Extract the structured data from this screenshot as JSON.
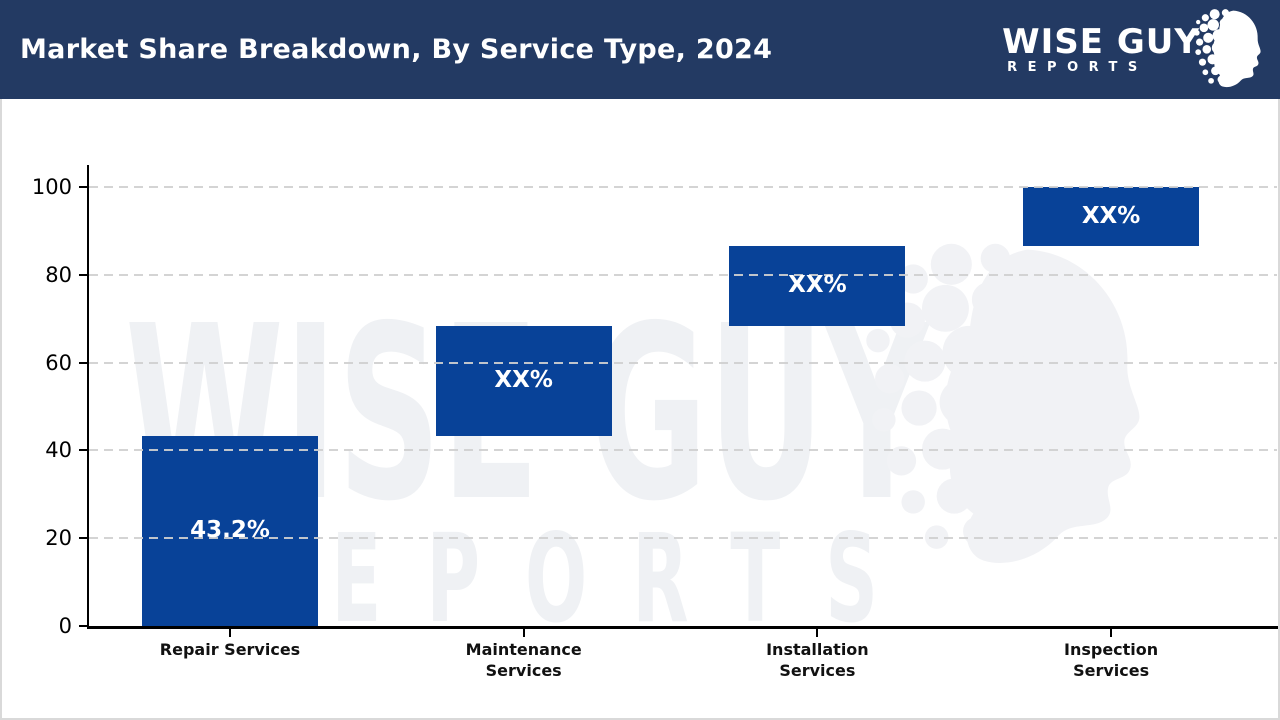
{
  "header": {
    "title": "Market Share Breakdown, By Service Type, 2024",
    "logo": {
      "line1": "WISE GUY",
      "line2": "REPORTS"
    }
  },
  "watermark": {
    "line1": "WISE GUY",
    "line2": "REPORTS"
  },
  "chart_data": {
    "type": "bar",
    "subtype": "waterfall",
    "title": "Market Share Breakdown, By Service Type, 2024",
    "categories": [
      "Repair Services",
      "Maintenance\nServices",
      "Installation\nServices",
      "Inspection\nServices"
    ],
    "segments": [
      {
        "category": "Repair Services",
        "start": 0,
        "end": 43.2,
        "label": "43.2%"
      },
      {
        "category": "Maintenance Services",
        "start": 43.2,
        "end": 68.4,
        "label": "XX%"
      },
      {
        "category": "Installation Services",
        "start": 68.4,
        "end": 86.5,
        "label": "XX%"
      },
      {
        "category": "Inspection Services",
        "start": 86.5,
        "end": 100,
        "label": "XX%"
      }
    ],
    "y_ticks": [
      0,
      20,
      40,
      60,
      80,
      100
    ],
    "ylim": [
      0,
      100
    ],
    "grid": "horizontal-dashed",
    "legend": "none",
    "bar_color": "#084298",
    "value_label_color": "#ffffff",
    "background_color": "#ffffff",
    "header_color": "#233a63"
  }
}
